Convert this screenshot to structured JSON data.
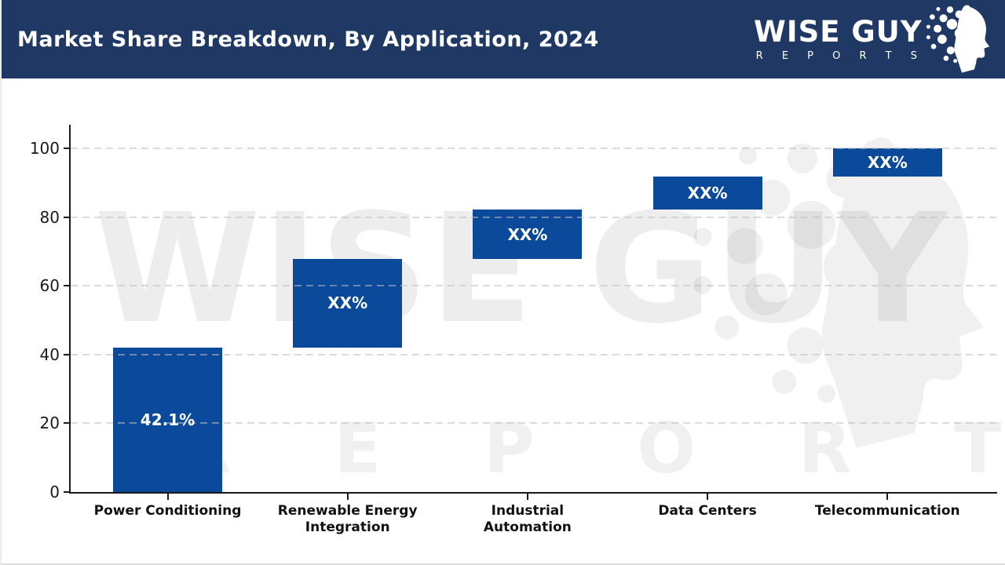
{
  "header": {
    "title": "Market Share Breakdown, By Application, 2024",
    "logo": {
      "name": "WISE GUY",
      "sub": "R E P O R T S",
      "head_icon": "dotted-head-profile"
    }
  },
  "watermark": {
    "line1": "WISE GUY",
    "line2": "R E P O R T S",
    "head_icon": "dotted-head-profile"
  },
  "chart_data": {
    "type": "bar",
    "subtype": "waterfall",
    "title": "Market Share Breakdown, By Application, 2024",
    "categories": [
      "Power Conditioning",
      "Renewable Energy Integration",
      "Industrial Automation",
      "Data Centers",
      "Telecommunication"
    ],
    "category_label_lines": [
      [
        "Power Conditioning"
      ],
      [
        "Renewable Energy",
        "Integration"
      ],
      [
        "Industrial",
        "Automation"
      ],
      [
        "Data Centers"
      ],
      [
        "Telecommunication"
      ]
    ],
    "segments": [
      {
        "category": "Power Conditioning",
        "from": 0,
        "to": 42.1,
        "label": "42.1%"
      },
      {
        "category": "Renewable Energy Integration",
        "from": 42.1,
        "to": 67.8,
        "label": "XX%"
      },
      {
        "category": "Industrial Automation",
        "from": 67.8,
        "to": 82.1,
        "label": "XX%"
      },
      {
        "category": "Data Centers",
        "from": 82.1,
        "to": 91.7,
        "label": "XX%"
      },
      {
        "category": "Telecommunication",
        "from": 91.7,
        "to": 100,
        "label": "XX%"
      }
    ],
    "yticks": [
      0,
      20,
      40,
      60,
      80,
      100
    ],
    "ylim": [
      0,
      106.8
    ],
    "xlabel": "",
    "ylabel": "",
    "legend": "none",
    "grid": "horizontal-dashed",
    "colors": {
      "bar": "#0B4A9B",
      "bar_label": "#FFFFFF",
      "grid": "#D9D9D9",
      "axis": "#1A1A1A",
      "header_bg": "#1F3864",
      "header_text": "#FFFFFF",
      "watermark": "#EDEDEE"
    }
  }
}
